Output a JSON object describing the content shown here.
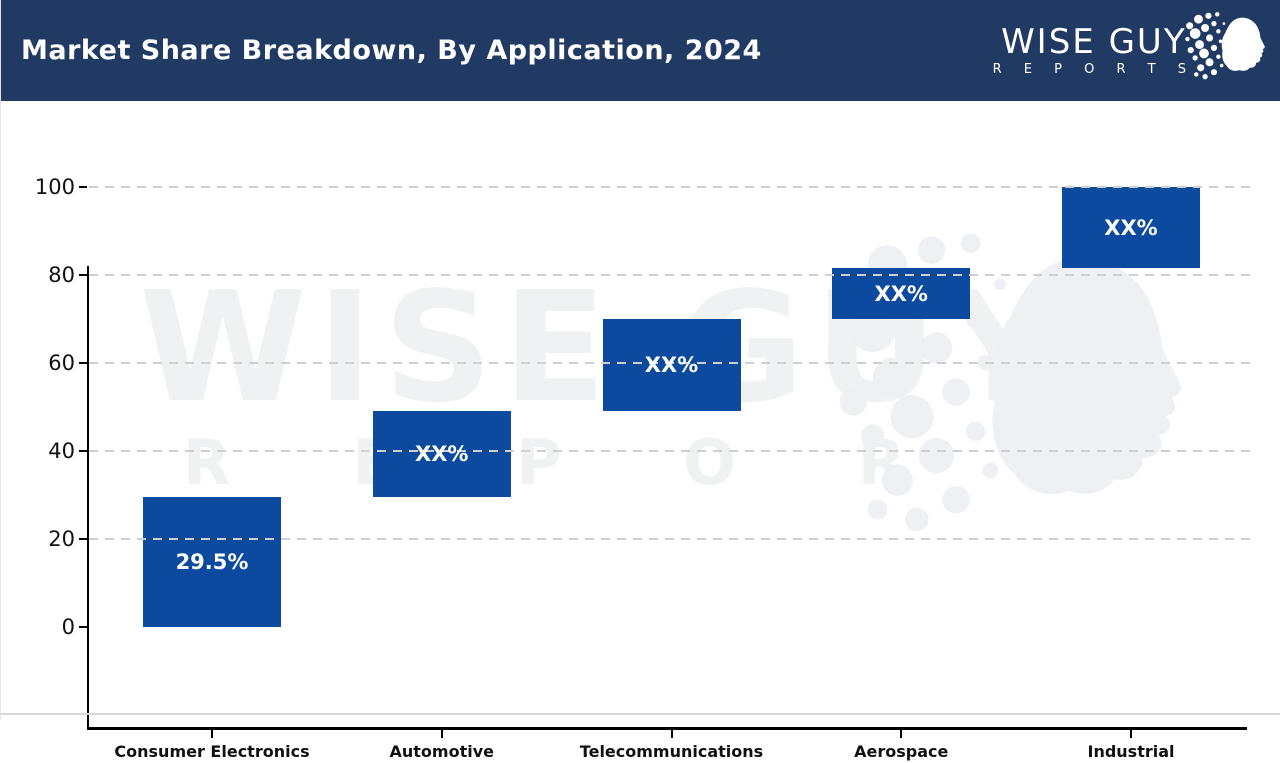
{
  "header": {
    "title": "Market Share Breakdown, By Application, 2024",
    "logo": {
      "line1": "WISE GUY",
      "line2": "R E P O R T S"
    }
  },
  "watermark": {
    "line1": "WISE GUY",
    "line2": "R E P O R T S"
  },
  "colors": {
    "header_bg": "#203a64",
    "bar": "#0b4a9e",
    "axis": "#000000",
    "gridline": "#cfcfcf",
    "watermark": "#f0f1f3",
    "bar_label_text": "#ffffff"
  },
  "chart_data": {
    "type": "bar",
    "subtype": "floating-waterfall-percentage",
    "title": "Market Share Breakdown, By Application, 2024",
    "categories": [
      "Consumer Electronics",
      "Automotive",
      "Telecommunications",
      "Aerospace",
      "Industrial"
    ],
    "bars": [
      {
        "category": "Consumer Electronics",
        "start": 0,
        "end": 29.5,
        "label": "29.5%"
      },
      {
        "category": "Automotive",
        "start": 29.5,
        "end": 49,
        "label": "XX%"
      },
      {
        "category": "Telecommunications",
        "start": 49,
        "end": 70,
        "label": "XX%"
      },
      {
        "category": "Aerospace",
        "start": 70,
        "end": 81.5,
        "label": "XX%"
      },
      {
        "category": "Industrial",
        "start": 81.5,
        "end": 100,
        "label": "XX%"
      }
    ],
    "xlabel": "",
    "ylabel": "",
    "yticks": [
      0,
      20,
      40,
      60,
      80,
      100
    ],
    "ylim": [
      0,
      105
    ],
    "grid": "horizontal-dashed-over-bars",
    "legend": null
  }
}
